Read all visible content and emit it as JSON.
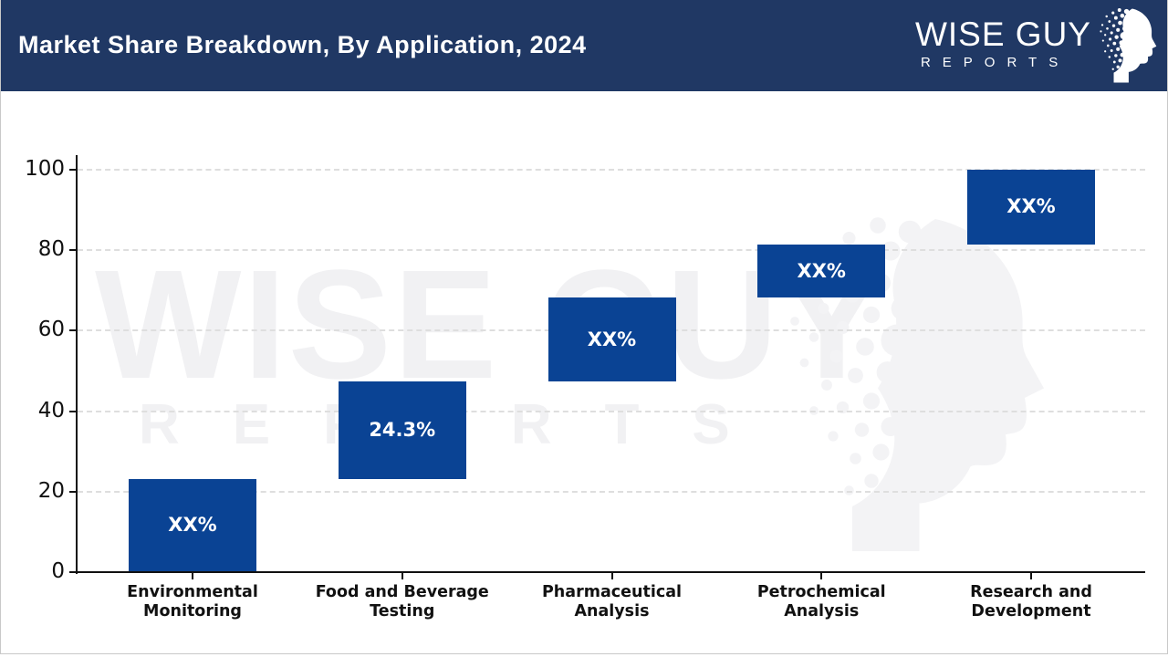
{
  "header": {
    "title": "Market Share Breakdown, By Application, 2024",
    "logo": {
      "title": "WISE GUY",
      "subtitle": "REPORTS"
    }
  },
  "watermark": {
    "line1": "WISE GUY",
    "line2": "REPORTS"
  },
  "colors": {
    "header_bg": "#203864",
    "bar": "#0a4394",
    "bar_label": "#ffffff",
    "gridline": "#dedede",
    "axis": "#111111",
    "watermark": "#f1f1f3",
    "frame_border": "#c9c9c9"
  },
  "chart_data": {
    "type": "bar",
    "subtype": "waterfall-floating",
    "title": "Market Share Breakdown, By Application, 2024",
    "categories": [
      {
        "lines": [
          "Environmental",
          "Monitoring"
        ]
      },
      {
        "lines": [
          "Food and Beverage",
          "Testing"
        ]
      },
      {
        "lines": [
          "Pharmaceutical",
          "Analysis"
        ]
      },
      {
        "lines": [
          "Petrochemical",
          "Analysis"
        ]
      },
      {
        "lines": [
          "Research and",
          "Development"
        ]
      }
    ],
    "segments": [
      {
        "start": 0,
        "end": 23.1,
        "label": "XX%"
      },
      {
        "start": 23.1,
        "end": 47.4,
        "label": "24.3%"
      },
      {
        "start": 47.4,
        "end": 68.3,
        "label": "XX%"
      },
      {
        "start": 68.3,
        "end": 81.5,
        "label": "XX%"
      },
      {
        "start": 81.5,
        "end": 100,
        "label": "XX%"
      }
    ],
    "yticks": [
      0,
      20,
      40,
      60,
      80,
      100
    ],
    "ylim": [
      0,
      104
    ],
    "xlabel": "",
    "ylabel": "",
    "legend": "none",
    "grid": {
      "axis": "y",
      "style": "dashed"
    }
  }
}
